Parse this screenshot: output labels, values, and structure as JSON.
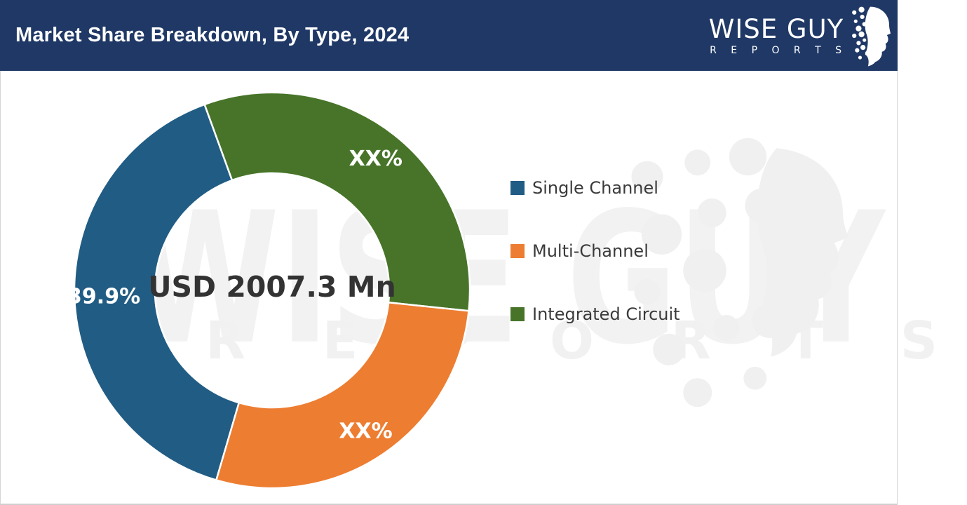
{
  "header": {
    "title": "Market Share Breakdown, By Type, 2024",
    "bg_color": "#1F3866",
    "logo_line1": "WISE GUY",
    "logo_line2": "R E P O R T S"
  },
  "watermark": {
    "line1": "WISE GUY",
    "line2": "R E P O R T S"
  },
  "chart_data": {
    "type": "pie",
    "subtype": "donut",
    "title": "Market Share Breakdown, By Type, 2024",
    "center_label": "USD 2007.3 Mn",
    "legend_position": "right",
    "start_angle_deg": 253.6,
    "direction": "clockwise",
    "segments": [
      {
        "label": "Single Channel",
        "color": "#215C84",
        "percent": 39.9,
        "value_label": "39.9%",
        "draw_index": 0
      },
      {
        "label": "Multi-Channel",
        "color": "#ED7D31",
        "percent": 27.9,
        "value_label": "XX%",
        "draw_index": 2
      },
      {
        "label": "Integrated Circuit",
        "color": "#477428",
        "percent": 32.2,
        "value_label": "XX%",
        "draw_index": 1
      }
    ]
  }
}
